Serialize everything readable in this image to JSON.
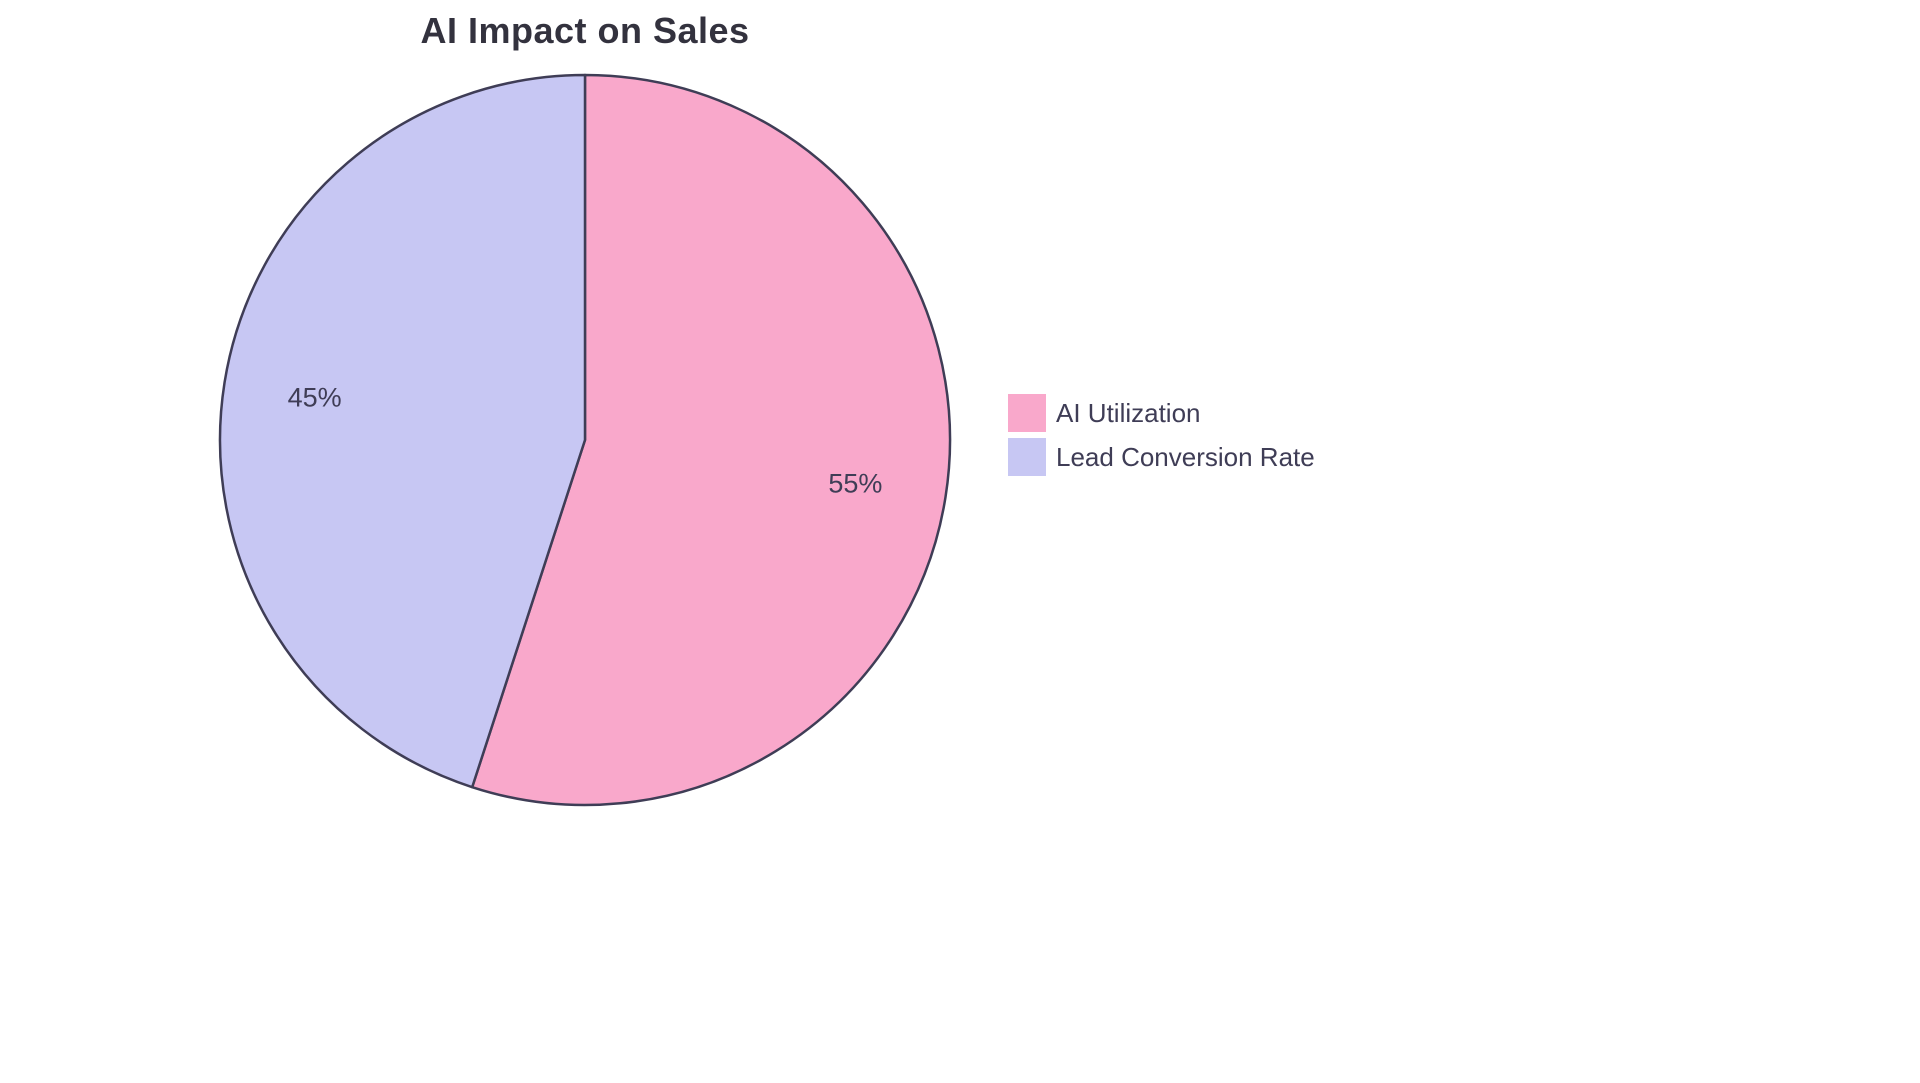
{
  "title": "AI Impact on Sales",
  "chart_data": {
    "type": "pie",
    "title": "AI Impact on Sales",
    "labels": [
      "AI Utilization",
      "Lead Conversion Rate"
    ],
    "values": [
      55,
      45
    ],
    "value_labels": [
      "55%",
      "45%"
    ],
    "colors": [
      "#F9A8CB",
      "#C7C7F3"
    ],
    "stroke_color": "#3f3d56",
    "start_angle": "top",
    "direction": "clockwise",
    "legend_position": "right",
    "grid": false
  }
}
